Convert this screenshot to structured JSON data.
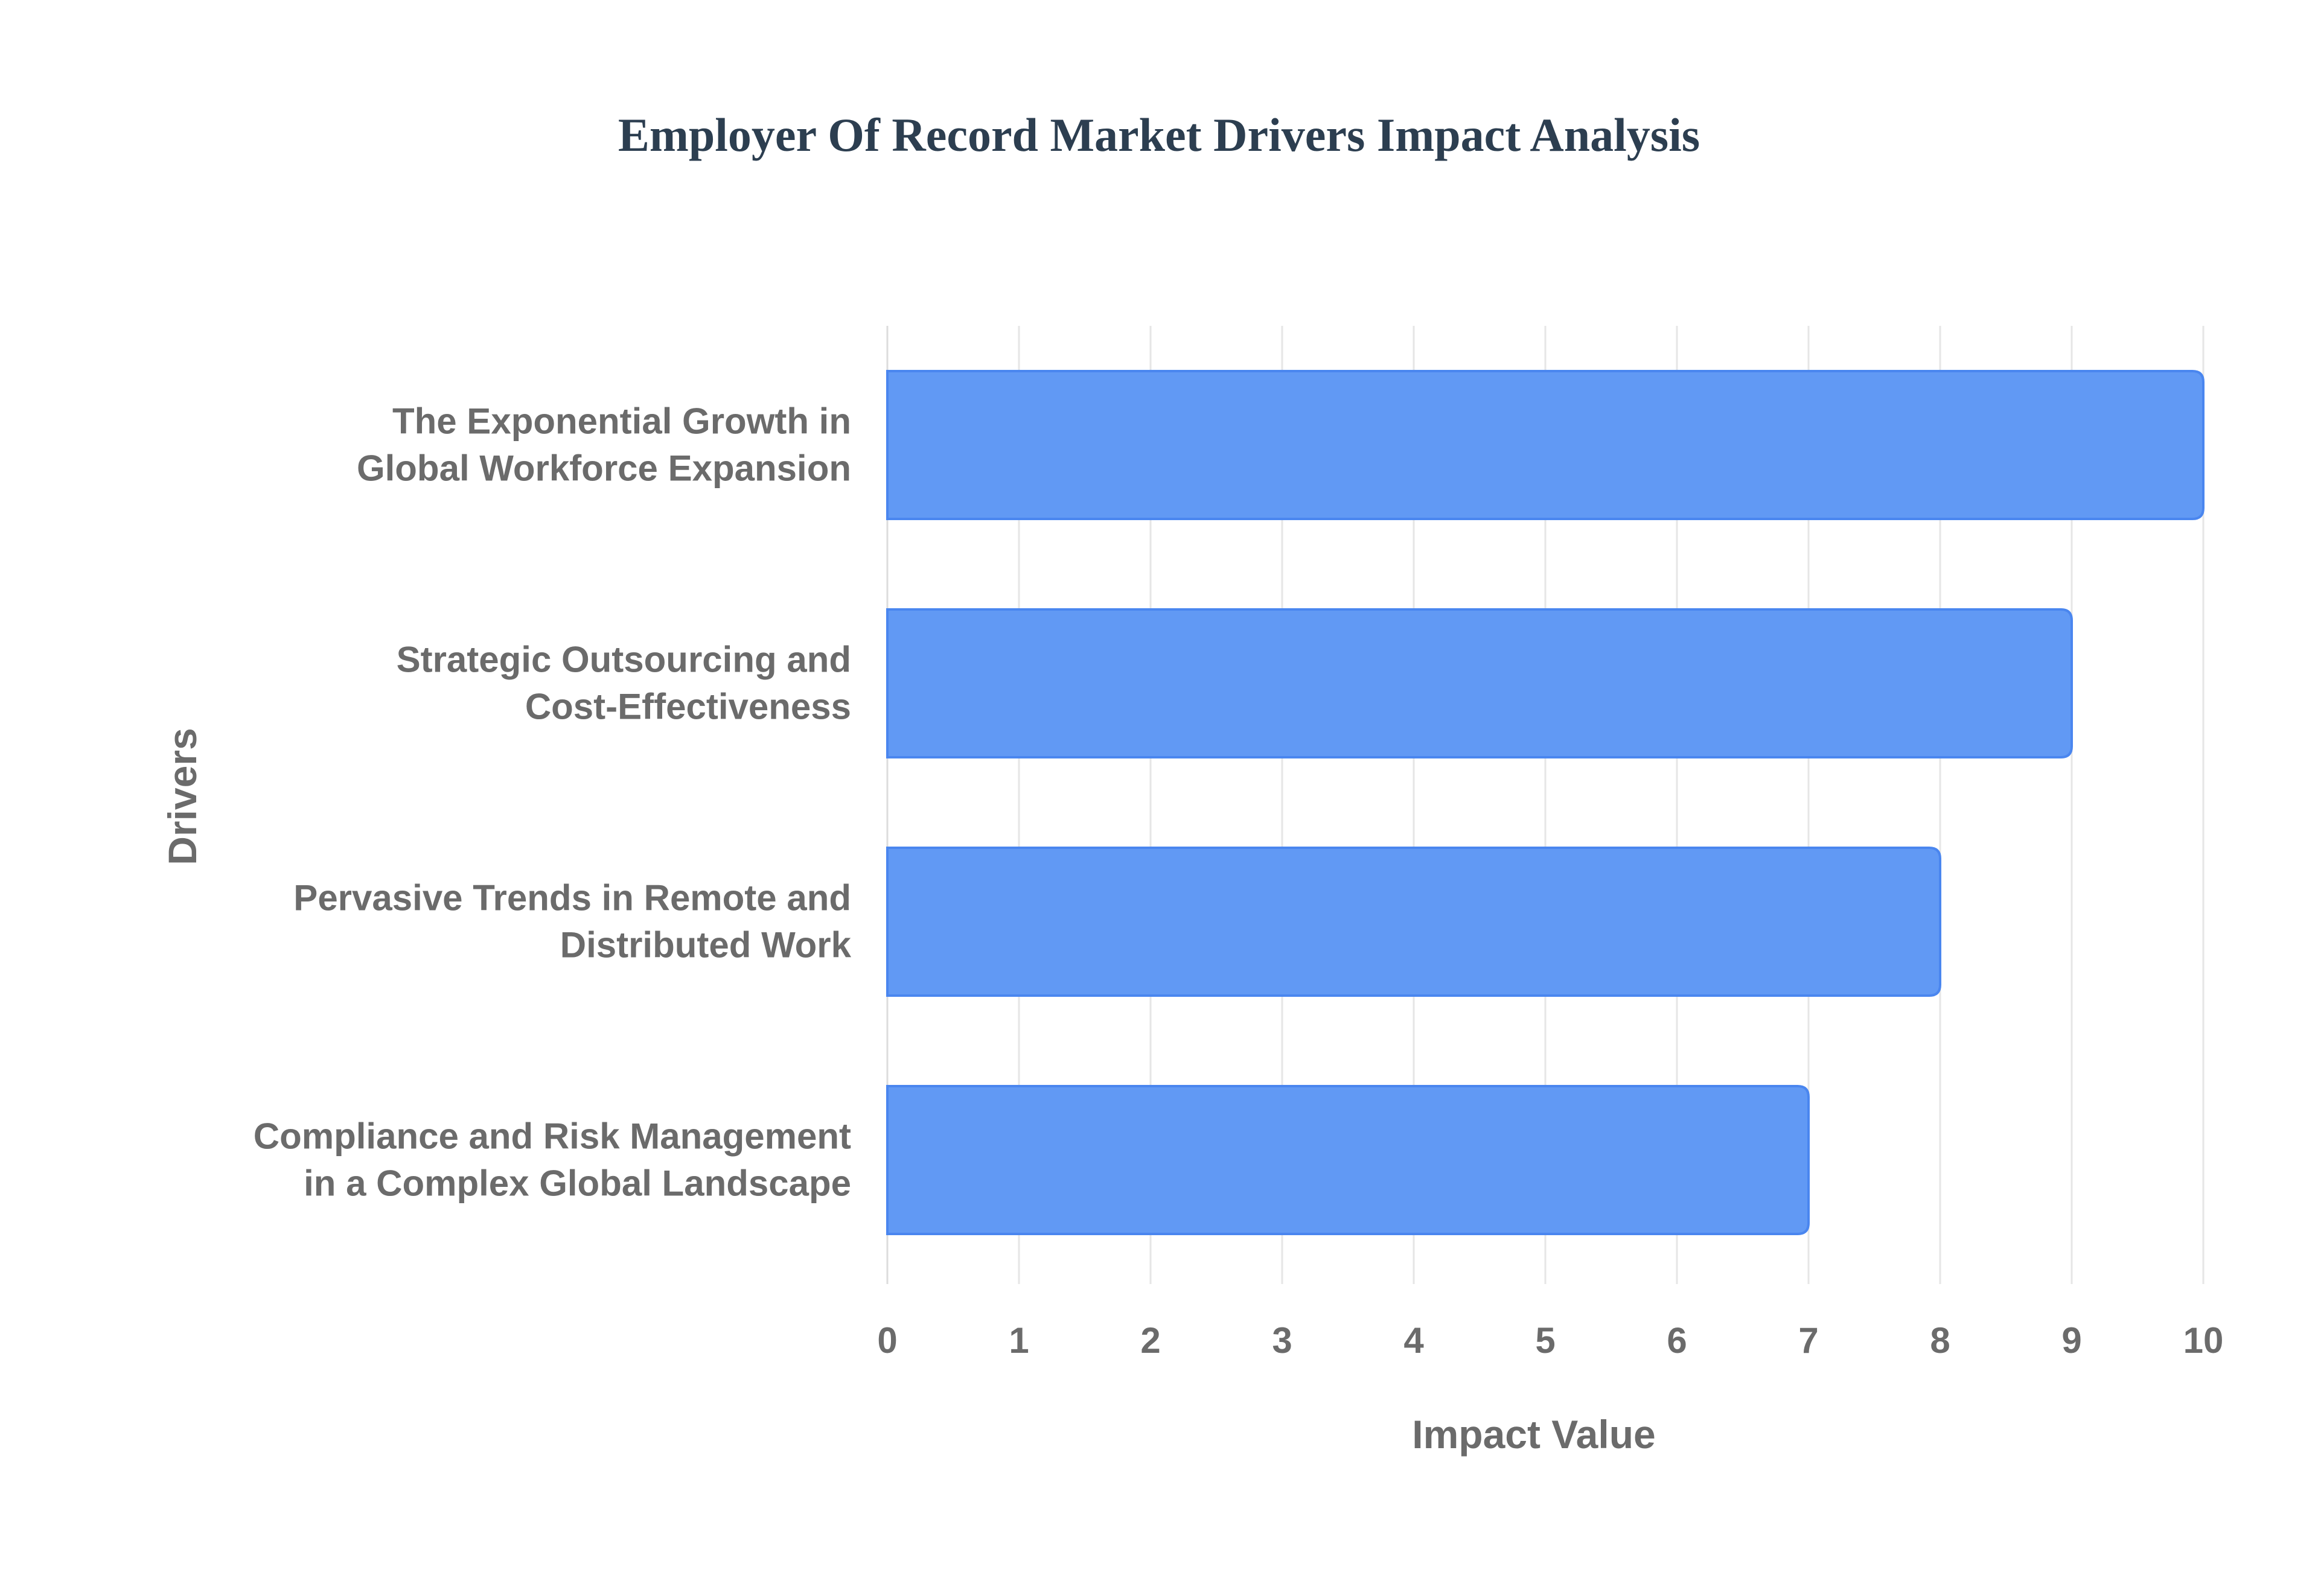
{
  "chart_data": {
    "type": "bar",
    "orientation": "horizontal",
    "title": "Employer Of Record Market Drivers Impact Analysis",
    "xlabel": "Impact Value",
    "ylabel": "Drivers",
    "categories": [
      [
        "The Exponential Growth in",
        "Global Workforce Expansion"
      ],
      [
        "Strategic Outsourcing and",
        "Cost-Effectiveness"
      ],
      [
        "Pervasive Trends in Remote and",
        "Distributed Work"
      ],
      [
        "Compliance and Risk Management",
        "in a Complex Global Landscape"
      ]
    ],
    "values": [
      10,
      9,
      8,
      7
    ],
    "xlim": [
      0,
      10
    ],
    "x_ticks": [
      "0",
      "1",
      "2",
      "3",
      "4",
      "5",
      "6",
      "7",
      "8",
      "9",
      "10"
    ],
    "grid": true,
    "legend": "none",
    "colors": {
      "bar_fill": "#6199f4",
      "bar_stroke": "#4a86ef",
      "title": "#2c3e50",
      "text": "#6b6b6b",
      "grid": "#e6e6e6"
    }
  }
}
